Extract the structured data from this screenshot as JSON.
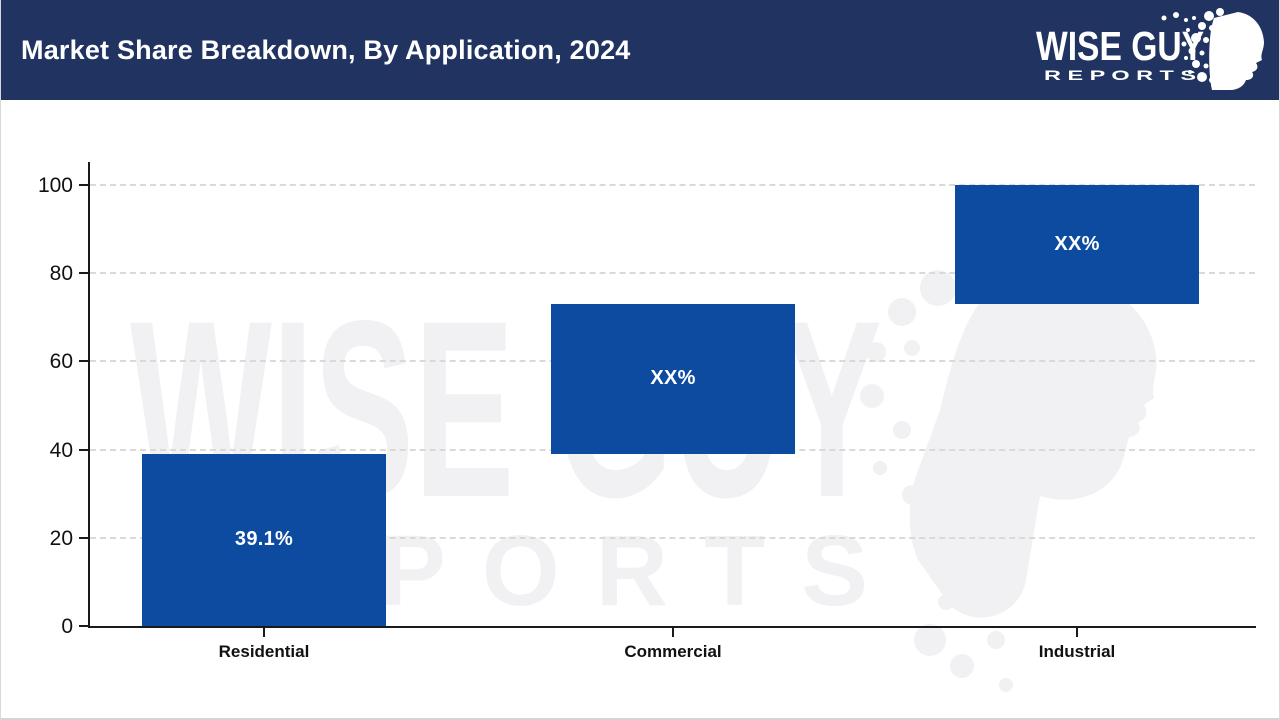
{
  "header": {
    "title": "Market Share Breakdown, By Application, 2024",
    "logo": {
      "line1": "WISE GUY",
      "line2": "R E P O R T S",
      "face_icon": "dotted-face-profile"
    }
  },
  "watermark": {
    "line1": "WISE GUY",
    "line2": "REPORTS"
  },
  "colors": {
    "header_bg": "#213461",
    "bar_fill": "#0d4ba0",
    "bar_label": "#ffffff",
    "grid": "#d9d9d9",
    "axis": "#1a1a1a",
    "watermark": "#f1f1f4"
  },
  "chart_data": {
    "type": "bar",
    "subtype": "floating-segment-waterfall",
    "title": "Market Share Breakdown, By Application, 2024",
    "xlabel": "",
    "ylabel": "",
    "categories": [
      "Residential",
      "Commercial",
      "Industrial"
    ],
    "bars": [
      {
        "category": "Residential",
        "start": 0,
        "end": 39.1,
        "label": "39.1%"
      },
      {
        "category": "Commercial",
        "start": 39.1,
        "end": 73.0,
        "label": "XX%"
      },
      {
        "category": "Industrial",
        "start": 73.0,
        "end": 100.0,
        "label": "XX%"
      }
    ],
    "ylim": [
      0,
      100
    ],
    "yticks": [
      0,
      20,
      40,
      60,
      80,
      100
    ],
    "grid": "horizontal-dashed",
    "legend": "none"
  }
}
